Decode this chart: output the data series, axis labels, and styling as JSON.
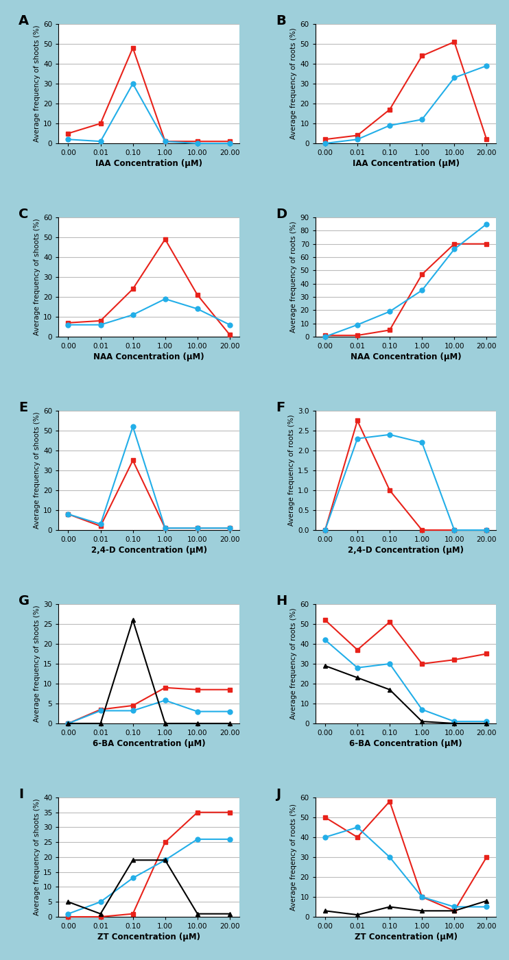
{
  "background_color": "#9ecfda",
  "panel_bg": "#ffffff",
  "x_labels": [
    "0.00",
    "0.01",
    "0.10",
    "1.00",
    "10.00",
    "20.00"
  ],
  "x_positions": [
    0,
    1,
    2,
    3,
    4,
    5
  ],
  "A": {
    "title": "A",
    "red": [
      5,
      10,
      48,
      1,
      1,
      1
    ],
    "blue": [
      2,
      1,
      30,
      1,
      0,
      0
    ],
    "ylabel": "Average frequency of shoots (%)",
    "xlabel": "IAA Concentration (μM)",
    "ylim": [
      0,
      60
    ],
    "yticks": [
      0,
      10,
      20,
      30,
      40,
      50,
      60
    ]
  },
  "B": {
    "title": "B",
    "red": [
      2,
      4,
      17,
      44,
      51,
      2
    ],
    "blue": [
      0,
      2,
      9,
      12,
      33,
      39
    ],
    "ylabel": "Average frequency of roots (%)",
    "xlabel": "IAA Concentration (μM)",
    "ylim": [
      0,
      60
    ],
    "yticks": [
      0,
      10,
      20,
      30,
      40,
      50,
      60
    ]
  },
  "C": {
    "title": "C",
    "red": [
      7,
      8,
      24,
      49,
      21,
      1
    ],
    "blue": [
      6,
      6,
      11,
      19,
      14,
      6
    ],
    "ylabel": "Average frequency of shoots (%)",
    "xlabel": "NAA Concentration (μM)",
    "ylim": [
      0,
      60
    ],
    "yticks": [
      0,
      10,
      20,
      30,
      40,
      50,
      60
    ]
  },
  "D": {
    "title": "D",
    "red": [
      1,
      1,
      5,
      47,
      70,
      70
    ],
    "blue": [
      0,
      9,
      19,
      35,
      66,
      85
    ],
    "ylabel": "Average frequency of roots (%)",
    "xlabel": "NAA Concentration (μM)",
    "ylim": [
      0,
      90
    ],
    "yticks": [
      0,
      10,
      20,
      30,
      40,
      50,
      60,
      70,
      80,
      90
    ]
  },
  "E": {
    "title": "E",
    "red": [
      8,
      2,
      35,
      1,
      1,
      1
    ],
    "blue": [
      8,
      3,
      52,
      1,
      1,
      1
    ],
    "ylabel": "Average frequency of shoots (%)",
    "xlabel": "2,4-D Concentration (μM)",
    "ylim": [
      0,
      60
    ],
    "yticks": [
      0,
      10,
      20,
      30,
      40,
      50,
      60
    ]
  },
  "F": {
    "title": "F",
    "red": [
      0,
      2.75,
      1.0,
      0,
      0,
      0
    ],
    "blue": [
      0,
      2.3,
      2.4,
      2.2,
      0,
      0
    ],
    "ylabel": "Average frequency of roots (%)",
    "xlabel": "2,4-D Concentration (μM)",
    "ylim": [
      0,
      3
    ],
    "yticks": [
      0,
      0.5,
      1.0,
      1.5,
      2.0,
      2.5,
      3.0
    ]
  },
  "G": {
    "title": "G",
    "red": [
      0,
      3.5,
      4.5,
      9,
      8.5,
      8.5
    ],
    "blue": [
      0,
      3.2,
      3.2,
      5.8,
      3,
      3
    ],
    "black": [
      0,
      0,
      26,
      0,
      0,
      0
    ],
    "ylabel": "Average frequency of shoots (%)",
    "xlabel": "6-BA Concentration (μM)",
    "ylim": [
      0,
      30
    ],
    "yticks": [
      0,
      5,
      10,
      15,
      20,
      25,
      30
    ]
  },
  "H": {
    "title": "H",
    "red": [
      52,
      37,
      51,
      30,
      32,
      35
    ],
    "blue": [
      42,
      28,
      30,
      7,
      1,
      1
    ],
    "black": [
      29,
      23,
      17,
      1,
      0,
      0
    ],
    "ylabel": "Average frequency of roots (%)",
    "xlabel": "6-BA Concentration (μM)",
    "ylim": [
      0,
      60
    ],
    "yticks": [
      0,
      10,
      20,
      30,
      40,
      50,
      60
    ]
  },
  "I": {
    "title": "I",
    "red": [
      0,
      0,
      1,
      25,
      35,
      35
    ],
    "blue": [
      1,
      5,
      13,
      19,
      26,
      26
    ],
    "black": [
      5,
      1,
      19,
      19,
      1,
      1
    ],
    "ylabel": "Average frequency of shoots (%)",
    "xlabel": "ZT Concentration (μM)",
    "ylim": [
      0,
      40
    ],
    "yticks": [
      0,
      5,
      10,
      15,
      20,
      25,
      30,
      35,
      40
    ]
  },
  "J": {
    "title": "J",
    "red": [
      50,
      40,
      58,
      10,
      3,
      30
    ],
    "blue": [
      40,
      45,
      30,
      10,
      5,
      5
    ],
    "black": [
      3,
      1,
      5,
      3,
      3,
      8
    ],
    "ylabel": "Average freqency of roots (%)",
    "xlabel": "ZT Concentration (μM)",
    "ylim": [
      0,
      60
    ],
    "yticks": [
      0,
      10,
      20,
      30,
      40,
      50,
      60
    ]
  },
  "red_color": "#e8221a",
  "blue_color": "#22aee8",
  "black_color": "#000000",
  "marker_red": "s",
  "marker_blue": "o",
  "marker_black": "^",
  "linewidth": 1.5,
  "markersize": 5
}
